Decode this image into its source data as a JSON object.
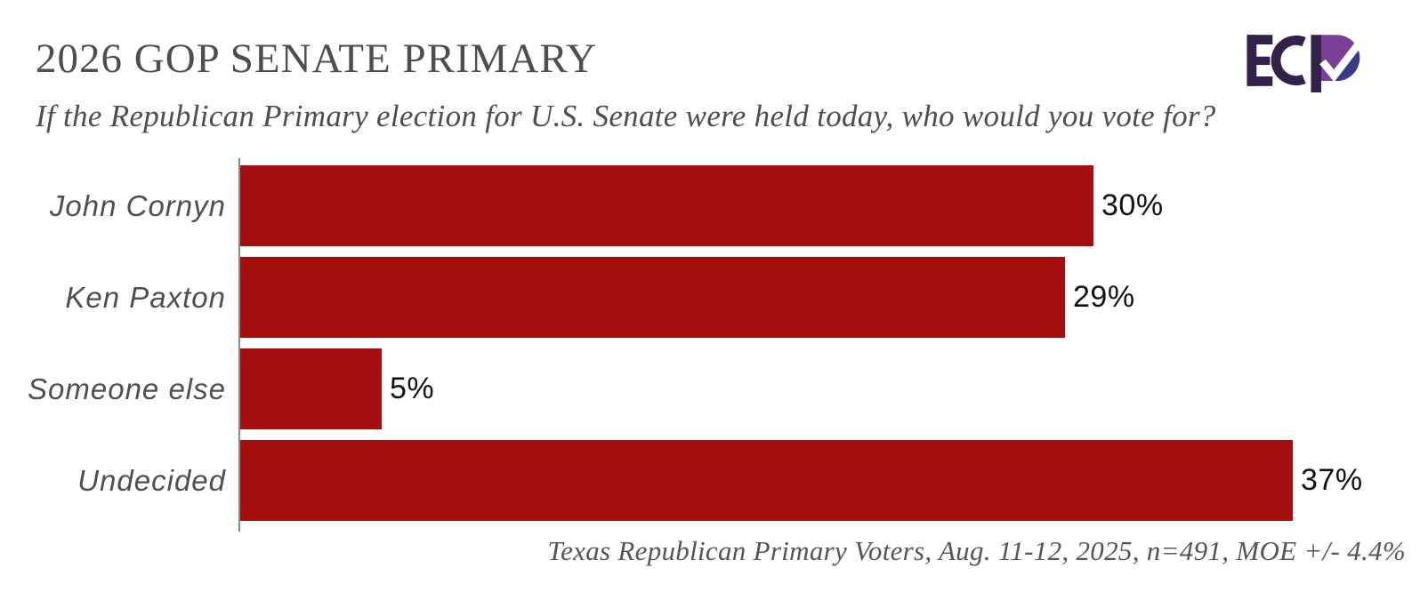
{
  "header": {
    "title": "2026 GOP SENATE PRIMARY",
    "subtitle": "If the Republican Primary election for U.S. Senate were held today, who would you vote for?",
    "logo_text": "ECP"
  },
  "chart_data": {
    "type": "bar",
    "orientation": "horizontal",
    "title": "2026 GOP SENATE PRIMARY",
    "categories": [
      "John Cornyn",
      "Ken Paxton",
      "Someone else",
      "Undecided"
    ],
    "values": [
      30,
      29,
      5,
      37
    ],
    "value_labels": [
      "30%",
      "29%",
      "5%",
      "37%"
    ],
    "xlim": [
      0,
      40
    ],
    "grid": false,
    "legend": "none",
    "xlabel": "",
    "ylabel": ""
  },
  "footer": {
    "source_note": "Texas Republican Primary Voters, Aug. 11-12, 2025, n=491, MOE +/- 4.4%"
  },
  "colors": {
    "bar": "#a40e0d",
    "title_text": "#4d4d53",
    "label_text": "#4f4f4f",
    "value_text": "#111111",
    "axis_line": "#8a8a8a",
    "footer_text": "#54545a",
    "logo_dark": "#32224a",
    "logo_purple": "#7c3f97",
    "logo_indigo": "#3c3a8c"
  }
}
